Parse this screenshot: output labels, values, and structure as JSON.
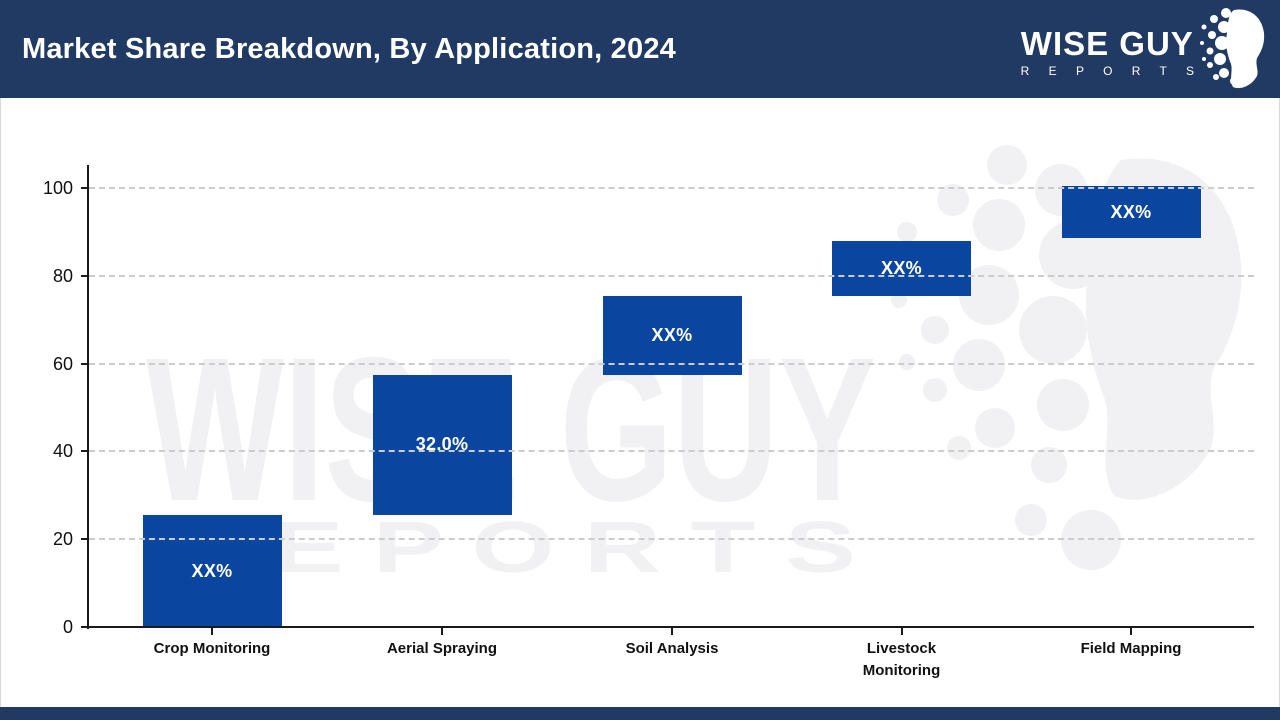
{
  "header": {
    "title": "Market Share Breakdown, By Application, 2024",
    "logo_line1": "WISE GUY",
    "logo_line2": "R E P O R T S"
  },
  "watermark": {
    "line1": "WISE GUY",
    "line2": "R E P O R T S"
  },
  "colors": {
    "header_bg": "#203a64",
    "footer_bg": "#203a64",
    "bar_fill": "#0a46a0",
    "bar_label_text": "#ffffff",
    "grid": "#cccccc",
    "axis": "#1a1a1a",
    "watermark": "#f1f1f4"
  },
  "chart_data": {
    "type": "bar",
    "subtype": "waterfall",
    "title": "Market Share Breakdown, By Application, 2024",
    "categories": [
      "Crop Monitoring",
      "Aerial Spraying",
      "Soil Analysis",
      "Livestock Monitoring",
      "Field Mapping"
    ],
    "xtick_labels": [
      "Crop Monitoring",
      "Aerial Spraying",
      "Soil Analysis",
      "Livestock\nMonitoring",
      "Field Mapping"
    ],
    "segments": [
      {
        "category": "Crop Monitoring",
        "start": 0,
        "end": 25.5,
        "label": "XX%"
      },
      {
        "category": "Aerial Spraying",
        "start": 25.5,
        "end": 57.5,
        "label": "32.0%"
      },
      {
        "category": "Soil Analysis",
        "start": 57.5,
        "end": 75.5,
        "label": "XX%"
      },
      {
        "category": "Livestock Monitoring",
        "start": 75.5,
        "end": 88.0,
        "label": "XX%"
      },
      {
        "category": "Field Mapping",
        "start": 88.5,
        "end": 100.5,
        "label": "XX%"
      }
    ],
    "displayed_values": [
      "XX%",
      "32.0%",
      "XX%",
      "XX%",
      "XX%"
    ],
    "yticks": [
      0,
      20,
      40,
      60,
      80,
      100
    ],
    "ylim": [
      0,
      105
    ],
    "xlabel": "",
    "ylabel": "",
    "grid": "horizontal dashed, drawn over bars",
    "legend": "none"
  }
}
